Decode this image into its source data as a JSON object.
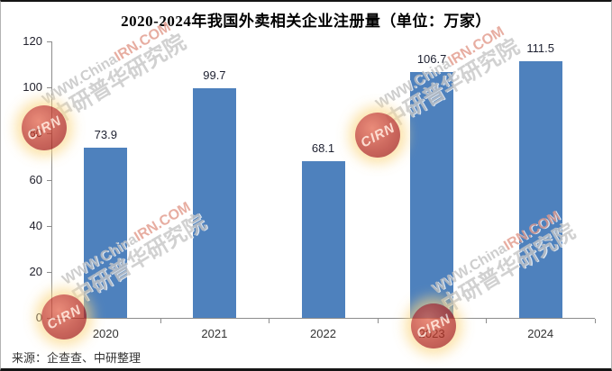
{
  "title": "2020-2024年我国外卖相关企业注册量（单位：万家）",
  "source": "来源：企查查、中研整理",
  "watermark": {
    "badge_text": "CIRN",
    "line1_prefix": "WWW.China",
    "line1_highlight": "IRN.COM",
    "line2": "中研普华研究院"
  },
  "chart_data": {
    "type": "bar",
    "title": "2020-2024年我国外卖相关企业注册量（单位：万家）",
    "categories": [
      "2020",
      "2021",
      "2022",
      "2023",
      "2024"
    ],
    "values": [
      73.9,
      99.7,
      68.1,
      106.7,
      111.5
    ],
    "xlabel": "",
    "ylabel": "",
    "ylim": [
      0,
      120
    ],
    "yticks": [
      0,
      20,
      40,
      60,
      80,
      100,
      120
    ],
    "grid": false,
    "legend": null,
    "bar_color": "#4E81BD",
    "axis_color": "#8c8c8c",
    "value_label_color": "#1d2030"
  }
}
